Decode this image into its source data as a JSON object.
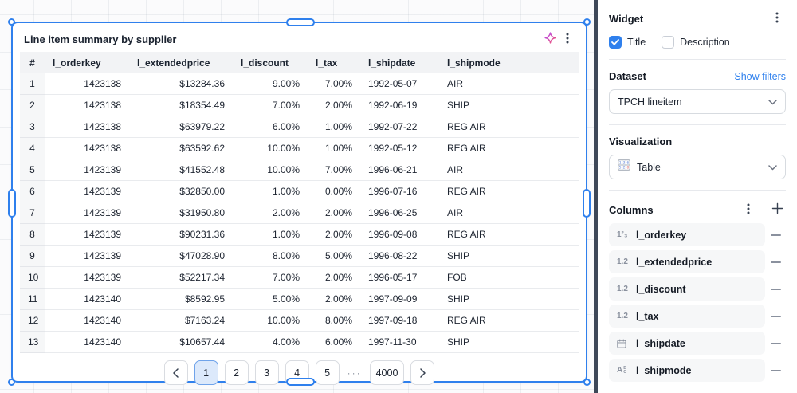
{
  "canvas": {
    "widget": {
      "title": "Line item summary by supplier"
    }
  },
  "table": {
    "headers": [
      "#",
      "l_orderkey",
      "l_extendedprice",
      "l_discount",
      "l_tax",
      "l_shipdate",
      "l_shipmode"
    ],
    "aligns": [
      "center",
      "right",
      "right",
      "right",
      "right",
      "left",
      "left"
    ],
    "rows": [
      [
        "1",
        "1423138",
        "$13284.36",
        "9.00%",
        "7.00%",
        "1992-05-07",
        "AIR"
      ],
      [
        "2",
        "1423138",
        "$18354.49",
        "7.00%",
        "2.00%",
        "1992-06-19",
        "SHIP"
      ],
      [
        "3",
        "1423138",
        "$63979.22",
        "6.00%",
        "1.00%",
        "1992-07-22",
        "REG AIR"
      ],
      [
        "4",
        "1423138",
        "$63592.62",
        "10.00%",
        "1.00%",
        "1992-05-12",
        "REG AIR"
      ],
      [
        "5",
        "1423139",
        "$41552.48",
        "10.00%",
        "7.00%",
        "1996-06-21",
        "AIR"
      ],
      [
        "6",
        "1423139",
        "$32850.00",
        "1.00%",
        "0.00%",
        "1996-07-16",
        "REG AIR"
      ],
      [
        "7",
        "1423139",
        "$31950.80",
        "2.00%",
        "2.00%",
        "1996-06-25",
        "AIR"
      ],
      [
        "8",
        "1423139",
        "$90231.36",
        "1.00%",
        "2.00%",
        "1996-09-08",
        "REG AIR"
      ],
      [
        "9",
        "1423139",
        "$47028.90",
        "8.00%",
        "5.00%",
        "1996-08-22",
        "SHIP"
      ],
      [
        "10",
        "1423139",
        "$52217.34",
        "7.00%",
        "2.00%",
        "1996-05-17",
        "FOB"
      ],
      [
        "11",
        "1423140",
        "$8592.95",
        "5.00%",
        "2.00%",
        "1997-09-09",
        "SHIP"
      ],
      [
        "12",
        "1423140",
        "$7163.24",
        "10.00%",
        "8.00%",
        "1997-09-18",
        "REG AIR"
      ],
      [
        "13",
        "1423140",
        "$10657.44",
        "4.00%",
        "6.00%",
        "1997-11-30",
        "SHIP"
      ]
    ]
  },
  "pagination": {
    "items": [
      {
        "type": "prev"
      },
      {
        "type": "page",
        "label": "1",
        "active": true
      },
      {
        "type": "page",
        "label": "2",
        "active": false
      },
      {
        "type": "page",
        "label": "3",
        "active": false
      },
      {
        "type": "page",
        "label": "4",
        "active": false
      },
      {
        "type": "page",
        "label": "5",
        "active": false
      },
      {
        "type": "ellipsis",
        "label": "···"
      },
      {
        "type": "page",
        "label": "4000",
        "active": false
      },
      {
        "type": "next"
      }
    ]
  },
  "sidebar": {
    "widget_section": {
      "heading": "Widget",
      "title_label": "Title",
      "title_checked": true,
      "description_label": "Description",
      "description_checked": false
    },
    "dataset_section": {
      "heading": "Dataset",
      "link_label": "Show filters",
      "selected": "TPCH lineitem"
    },
    "visualization_section": {
      "heading": "Visualization",
      "selected": "Table"
    },
    "columns_section": {
      "heading": "Columns",
      "items": [
        {
          "label": "l_orderkey",
          "icon": "integer-type-icon"
        },
        {
          "label": "l_extendedprice",
          "icon": "decimal-type-icon"
        },
        {
          "label": "l_discount",
          "icon": "decimal-type-icon"
        },
        {
          "label": "l_tax",
          "icon": "decimal-type-icon"
        },
        {
          "label": "l_shipdate",
          "icon": "date-type-icon"
        },
        {
          "label": "l_shipmode",
          "icon": "text-type-icon"
        }
      ]
    }
  },
  "colors": {
    "accent": "#2f80ed",
    "link": "#2f80ed",
    "panel_divider": "#3e4858",
    "active_page_bg": "#dce9fb",
    "sparkle_gradient_start": "#b14bf4",
    "sparkle_gradient_end": "#f3546f"
  }
}
